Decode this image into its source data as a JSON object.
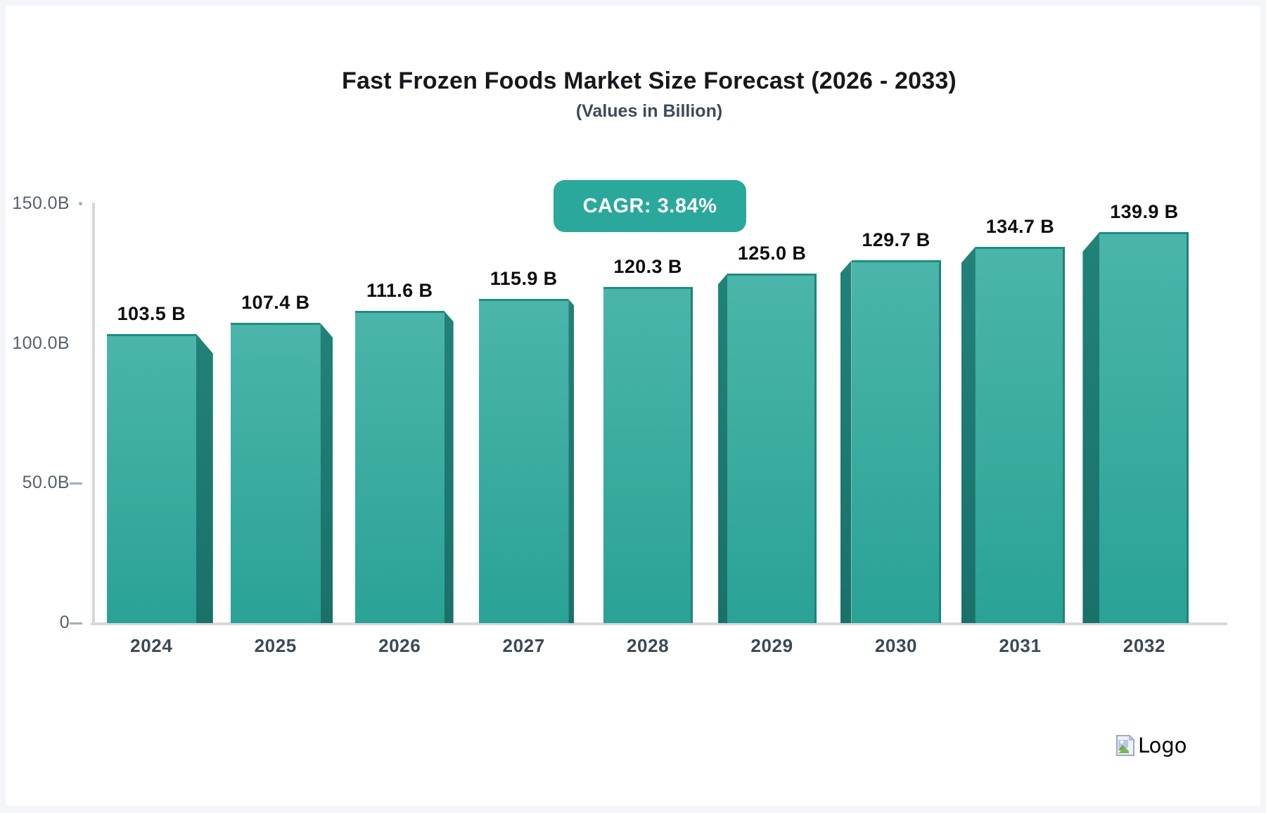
{
  "header": {
    "title": "Fast Frozen Foods Market Size Forecast (2026 - 2033)",
    "subtitle": "(Values in Billion)",
    "badge": "CAGR: 3.84%"
  },
  "chart_data": {
    "type": "bar",
    "title": "Fast Frozen Foods Market Size Forecast (2026 - 2033)",
    "subtitle": "(Values in Billion)",
    "annotation": "CAGR: 3.84%",
    "categories": [
      "2024",
      "2025",
      "2026",
      "2027",
      "2028",
      "2029",
      "2030",
      "2031",
      "2032"
    ],
    "values": [
      103.5,
      107.4,
      111.6,
      115.9,
      120.3,
      125.0,
      129.7,
      134.7,
      139.9
    ],
    "value_labels": [
      "103.5 B",
      "107.4 B",
      "111.6 B",
      "115.9 B",
      "120.3 B",
      "125.0 B",
      "129.7 B",
      "134.7 B",
      "139.9 B"
    ],
    "unit": "Billion",
    "ylim": [
      0,
      150
    ],
    "yticks": [
      {
        "label": "150.0B",
        "value": 150,
        "tick": "dot"
      },
      {
        "label": "100.0B",
        "value": 100,
        "tick": "none"
      },
      {
        "label": "50.0B",
        "value": 50,
        "tick": "dash"
      },
      {
        "label": "0",
        "value": 0,
        "tick": "dash"
      }
    ],
    "grid": false,
    "legend": "none",
    "colors": {
      "bar_top": "#4bb5aa",
      "bar_bottom": "#2aa296",
      "bar_side": "#1e7a72",
      "badge": "#2aa89c",
      "axis": "#d5d8dd",
      "y_label": "#55616d",
      "x_label": "#3c4954",
      "value_label": "#0b0d10"
    }
  },
  "footer": {
    "logo_alt": "Logo"
  }
}
